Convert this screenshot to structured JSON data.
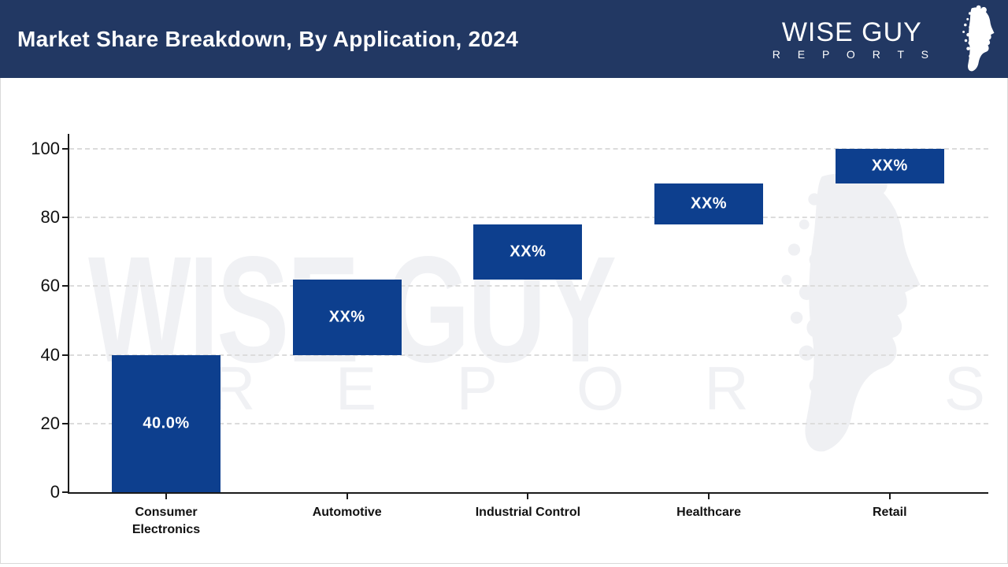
{
  "header": {
    "title": "Market Share Breakdown, By Application, 2024",
    "background_color": "#223863",
    "brand": {
      "line1": "WISE GUY",
      "line2": "R E P O R T S",
      "face_icon": "dotted-head-profile"
    }
  },
  "watermark": {
    "line1": "WISE GUY",
    "line2": "R E P O R T S",
    "face_icon": "dotted-head-profile",
    "color": "#f0f1f4"
  },
  "chart_data": {
    "type": "bar",
    "subtype": "waterfall",
    "title": "Market Share Breakdown, By Application, 2024",
    "xlabel": "",
    "ylabel": "",
    "categories": [
      "Consumer\nElectronics",
      "Automotive",
      "Industrial Control",
      "Healthcare",
      "Retail"
    ],
    "segments": [
      {
        "category": "Consumer Electronics",
        "start": 0,
        "end": 40,
        "value": 40,
        "label": "40.0%"
      },
      {
        "category": "Automotive",
        "start": 40,
        "end": 62,
        "value": 22,
        "label": "XX%"
      },
      {
        "category": "Industrial Control",
        "start": 62,
        "end": 78,
        "value": 16,
        "label": "XX%"
      },
      {
        "category": "Healthcare",
        "start": 78,
        "end": 90,
        "value": 12,
        "label": "XX%"
      },
      {
        "category": "Retail",
        "start": 90,
        "end": 100,
        "value": 10,
        "label": "XX%"
      }
    ],
    "yticks": [
      0,
      20,
      40,
      60,
      80,
      100
    ],
    "ylim": [
      0,
      104
    ],
    "grid": "horizontal-dashed",
    "legend": "none",
    "bar_color": "#0d3f8e",
    "bar_label_color": "#ffffff",
    "axis_color": "#1a1a1a",
    "gridline_color": "#dcdcdc"
  }
}
